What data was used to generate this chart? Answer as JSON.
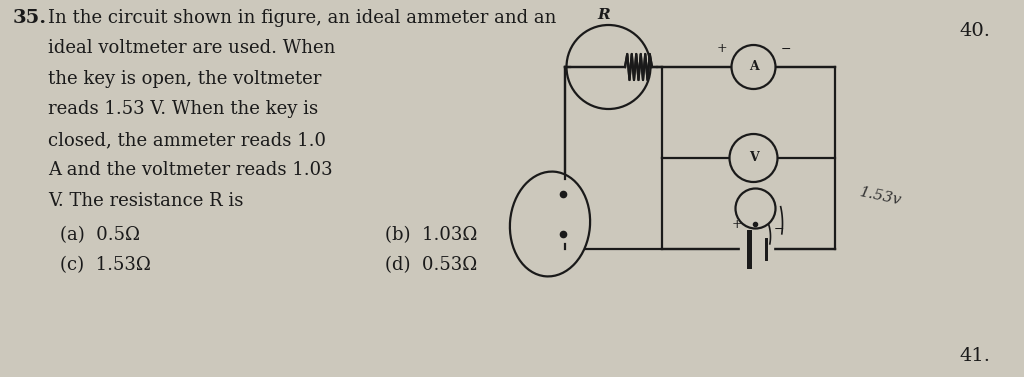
{
  "question_number": "35.",
  "lines": [
    "In the circuit shown in figure, an ideal ammeter and an",
    "ideal voltmeter are used. When",
    "the key is open, the voltmeter",
    "reads 1.53 V. When the key is",
    "closed, the ammeter reads 1.0",
    "A and the voltmeter reads 1.03",
    "V. The resistance R is"
  ],
  "opt_a": "(a)  0.5Ω",
  "opt_b": "(b)  1.03Ω",
  "opt_c": "(c)  1.53Ω",
  "opt_d": "(d)  0.53Ω",
  "num_right": "40.",
  "num_right2": "41.",
  "annotation": "1.53v",
  "bg_color": "#ccc8bc",
  "text_color": "#1a1a1a",
  "fs_main": 13,
  "fs_opt": 13,
  "fs_num": 14
}
